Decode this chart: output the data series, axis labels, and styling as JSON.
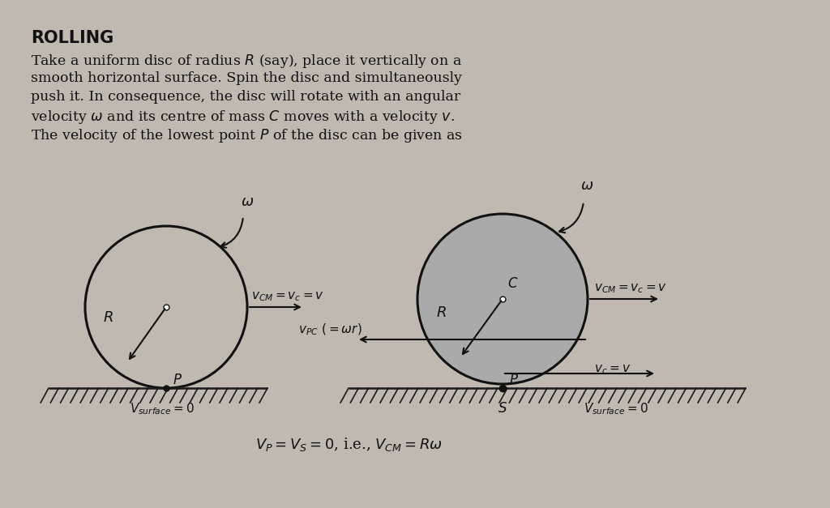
{
  "bg_color": "#bfb9af",
  "title": "ROLLING",
  "body_line1": "Take a uniform disc of radius ",
  "body_line1b": "R",
  "body_line1c": " (say), place it vertically on a",
  "body_line2": "smooth horizontal surface. Spin the disc and simultaneously",
  "body_line3": "push it. In consequence, the disc will rotate with an angular",
  "body_line4": "velocity ",
  "body_line4b": "ω",
  "body_line4c": " and its centre of mass ",
  "body_line4d": "C",
  "body_line4e": " moves with a velocity ",
  "body_line4f": "v",
  "body_line4g": ".",
  "body_line5": "The velocity of the lowest point ",
  "body_line5b": "P",
  "body_line5c": " of the disc can be given as",
  "text_color": "#111111",
  "ground_color": "#1a1a1a",
  "disc1_fill": "none",
  "disc2_fill": "#a8a8a8",
  "formula": "$V_P=V_S= 0$, i.e., $V_{CM}= R\\omega$"
}
